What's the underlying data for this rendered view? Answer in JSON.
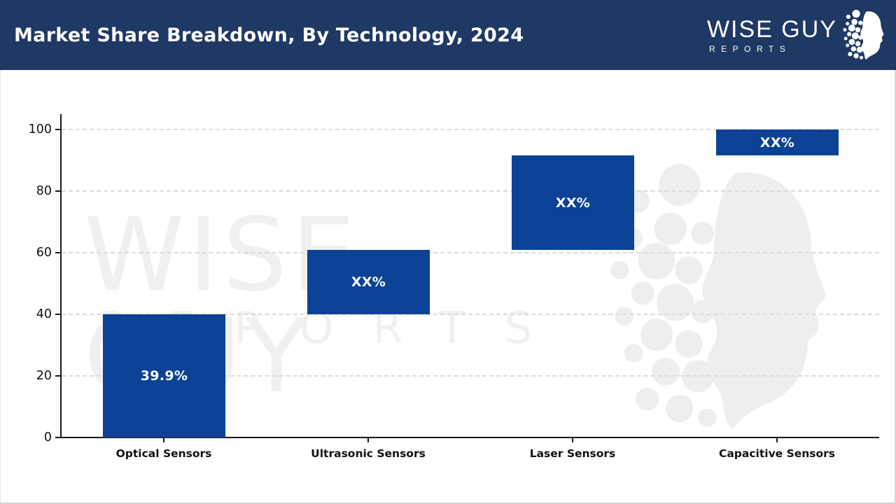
{
  "header": {
    "title": "Market Share Breakdown, By Technology, 2024",
    "bg_color": "#1f3864",
    "logo": {
      "line1": "WISE GUY",
      "line2": "REPORTS"
    }
  },
  "watermark": {
    "line1": "WISE GUY",
    "line2": "REPORTS"
  },
  "chart_data": {
    "type": "bar",
    "subtype": "waterfall",
    "title": "Market Share Breakdown, By Technology, 2024",
    "categories": [
      "Optical Sensors",
      "Ultrasonic Sensors",
      "Laser Sensors",
      "Capacitive Sensors"
    ],
    "segments": [
      {
        "category": "Optical Sensors",
        "start": 0,
        "end": 39.9,
        "label": "39.9%"
      },
      {
        "category": "Ultrasonic Sensors",
        "start": 39.9,
        "end": 60.8,
        "label": "XX%"
      },
      {
        "category": "Laser Sensors",
        "start": 60.8,
        "end": 91.5,
        "label": "XX%"
      },
      {
        "category": "Capacitive Sensors",
        "start": 91.5,
        "end": 100,
        "label": "XX%"
      }
    ],
    "xlabel": "",
    "ylabel": "",
    "ylim": [
      0,
      105
    ],
    "yticks": [
      0,
      20,
      40,
      60,
      80,
      100
    ],
    "grid": "horizontal-dashed",
    "legend": "none",
    "bar_color": "#0b4295",
    "bar_label_color": "#ffffff",
    "axis_color": "#1a1a1a",
    "gridline_color": "#d9d9d9"
  }
}
